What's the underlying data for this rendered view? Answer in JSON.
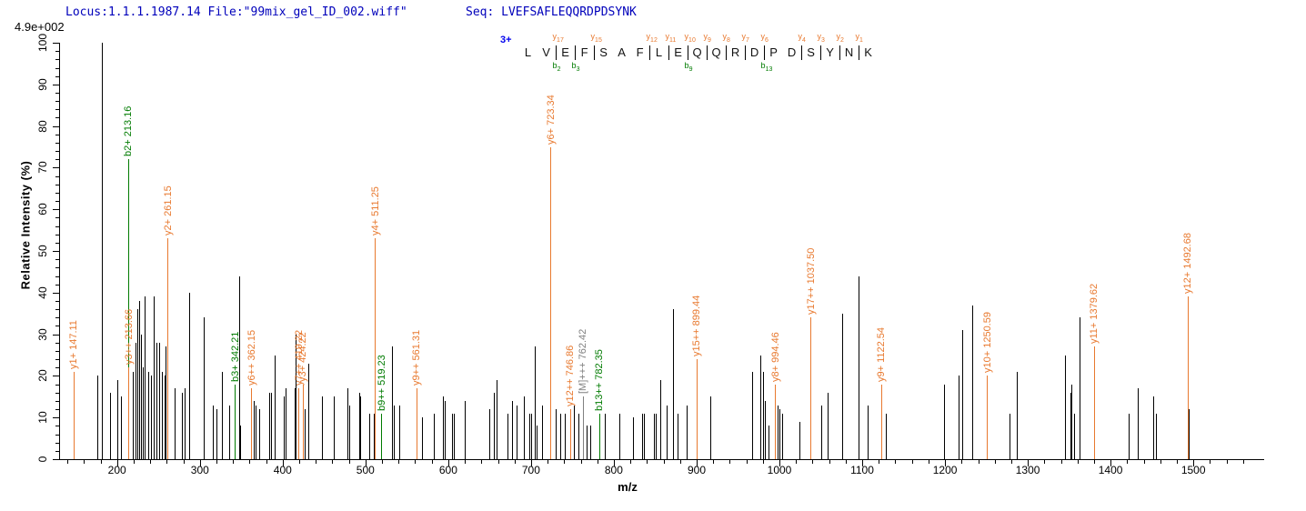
{
  "header": {
    "locus_file": "Locus:1.1.1.1987.14 File:\"99mix_gel_ID_002.wiff\"",
    "seq_label": "Seq: ",
    "seq_value": "LVEFSAFLEQQRDPDSYNK",
    "scale_label": "4.9e+002"
  },
  "sequence_panel": {
    "charge": "3+",
    "residues": "LVEFSAFLEQQRDPDSYNK",
    "markers": [
      {
        "gap": 3,
        "y": "y17",
        "b": "b2"
      },
      {
        "gap": 4,
        "y": "",
        "b": "b3"
      },
      {
        "gap": 5,
        "y": "y15",
        "b": ""
      },
      {
        "gap": 8,
        "y": "y12",
        "b": ""
      },
      {
        "gap": 9,
        "y": "y11",
        "b": ""
      },
      {
        "gap": 10,
        "y": "y10",
        "b": "b9"
      },
      {
        "gap": 11,
        "y": "y9",
        "b": ""
      },
      {
        "gap": 12,
        "y": "y8",
        "b": ""
      },
      {
        "gap": 13,
        "y": "y7",
        "b": ""
      },
      {
        "gap": 14,
        "y": "y6",
        "b": "b13"
      },
      {
        "gap": 16,
        "y": "y4",
        "b": ""
      },
      {
        "gap": 17,
        "y": "y3",
        "b": ""
      },
      {
        "gap": 18,
        "y": "y2",
        "b": ""
      },
      {
        "gap": 19,
        "y": "y1",
        "b": ""
      }
    ]
  },
  "colors": {
    "y_ion": "#e8792f",
    "b_ion": "#007b00",
    "precursor": "#808080",
    "peak": "#000000",
    "header_text": "#0000bb",
    "charge_text": "#0000ee"
  },
  "chart_data": {
    "type": "bar",
    "subtype": "ms2-stick-spectrum",
    "title": "",
    "xlabel": "m/z",
    "ylabel": "Relative Intensity (%)",
    "xlim": [
      130,
      1580
    ],
    "ylim": [
      0,
      100
    ],
    "x_major_ticks": [
      200,
      300,
      400,
      500,
      600,
      700,
      800,
      900,
      1000,
      1100,
      1200,
      1300,
      1400,
      1500
    ],
    "x_minor_step": 20,
    "y_major_step": 10,
    "y_minor_step": 2,
    "grid": false,
    "legend": false,
    "annotated_peaks": [
      {
        "label": "y1+ 147.11",
        "ion": "y",
        "mz": 147.11,
        "intensity": 21
      },
      {
        "label": "b2+ 213.16",
        "ion": "b",
        "mz": 213.16,
        "intensity": 72
      },
      {
        "label": "y3++ 213.66",
        "ion": "y",
        "mz": 213.66,
        "intensity": 22
      },
      {
        "label": "y2+ 261.15",
        "ion": "y",
        "mz": 261.15,
        "intensity": 53
      },
      {
        "label": "b3+ 342.21",
        "ion": "b",
        "mz": 342.21,
        "intensity": 18
      },
      {
        "label": "y6++ 362.15",
        "ion": "y",
        "mz": 362.15,
        "intensity": 17
      },
      {
        "label": "y7++ 419.22",
        "ion": "y",
        "mz": 419.22,
        "intensity": 17
      },
      {
        "label": "y3+ 424.22",
        "ion": "y",
        "mz": 424.22,
        "intensity": 18
      },
      {
        "label": "y4+ 511.25",
        "ion": "y",
        "mz": 511.25,
        "intensity": 53
      },
      {
        "label": "b9++ 519.23",
        "ion": "b",
        "mz": 519.23,
        "intensity": 11
      },
      {
        "label": "y9++ 561.31",
        "ion": "y",
        "mz": 561.31,
        "intensity": 17
      },
      {
        "label": "y6+ 723.34",
        "ion": "y",
        "mz": 723.34,
        "intensity": 75
      },
      {
        "label": "y12++ 746.86",
        "ion": "y",
        "mz": 746.86,
        "intensity": 12
      },
      {
        "label": "[M]+++ 762.42",
        "ion": "M",
        "mz": 762.42,
        "intensity": 15
      },
      {
        "label": "b13++ 782.35",
        "ion": "b",
        "mz": 782.35,
        "intensity": 11
      },
      {
        "label": "y15++ 899.44",
        "ion": "y",
        "mz": 899.44,
        "intensity": 24
      },
      {
        "label": "y8+ 994.46",
        "ion": "y",
        "mz": 994.46,
        "intensity": 18
      },
      {
        "label": "y17++ 1037.50",
        "ion": "y",
        "mz": 1037.5,
        "intensity": 34
      },
      {
        "label": "y9+ 1122.54",
        "ion": "y",
        "mz": 1122.54,
        "intensity": 18
      },
      {
        "label": "y10+ 1250.59",
        "ion": "y",
        "mz": 1250.59,
        "intensity": 20
      },
      {
        "label": "y11+ 1379.62",
        "ion": "y",
        "mz": 1379.62,
        "intensity": 27
      },
      {
        "label": "y12+ 1492.68",
        "ion": "y",
        "mz": 1492.68,
        "intensity": 39
      }
    ],
    "unannotated_peaks": [
      [
        176,
        20
      ],
      [
        182,
        100
      ],
      [
        192,
        16
      ],
      [
        200,
        19
      ],
      [
        205,
        15
      ],
      [
        219,
        21
      ],
      [
        222,
        28
      ],
      [
        224,
        36
      ],
      [
        227,
        38
      ],
      [
        229,
        30
      ],
      [
        231,
        22
      ],
      [
        233,
        39
      ],
      [
        238,
        21
      ],
      [
        241,
        20
      ],
      [
        244,
        39
      ],
      [
        247,
        28
      ],
      [
        251,
        28
      ],
      [
        254,
        21
      ],
      [
        257,
        20
      ],
      [
        259,
        27
      ],
      [
        269,
        17
      ],
      [
        278,
        16
      ],
      [
        282,
        17
      ],
      [
        287,
        40
      ],
      [
        305,
        34
      ],
      [
        316,
        13
      ],
      [
        320,
        12
      ],
      [
        327,
        21
      ],
      [
        335,
        13
      ],
      [
        347,
        44
      ],
      [
        349,
        8
      ],
      [
        365,
        14
      ],
      [
        367,
        13
      ],
      [
        372,
        12
      ],
      [
        384,
        16
      ],
      [
        386,
        16
      ],
      [
        390,
        25
      ],
      [
        401,
        15
      ],
      [
        404,
        17
      ],
      [
        414,
        17
      ],
      [
        416,
        30
      ],
      [
        427,
        12
      ],
      [
        431,
        23
      ],
      [
        447,
        15
      ],
      [
        462,
        15
      ],
      [
        478,
        17
      ],
      [
        480,
        13
      ],
      [
        492,
        16
      ],
      [
        494,
        15
      ],
      [
        504,
        11
      ],
      [
        510,
        11
      ],
      [
        532,
        27
      ],
      [
        534,
        13
      ],
      [
        541,
        13
      ],
      [
        568,
        10
      ],
      [
        583,
        11
      ],
      [
        594,
        15
      ],
      [
        596,
        14
      ],
      [
        605,
        11
      ],
      [
        607,
        11
      ],
      [
        620,
        14
      ],
      [
        650,
        12
      ],
      [
        655,
        16
      ],
      [
        658,
        19
      ],
      [
        672,
        11
      ],
      [
        677,
        14
      ],
      [
        683,
        13
      ],
      [
        691,
        15
      ],
      [
        698,
        11
      ],
      [
        700,
        11
      ],
      [
        705,
        27
      ],
      [
        707,
        8
      ],
      [
        713,
        13
      ],
      [
        730,
        12
      ],
      [
        735,
        11
      ],
      [
        741,
        11
      ],
      [
        752,
        13
      ],
      [
        757,
        11
      ],
      [
        767,
        8
      ],
      [
        771,
        8
      ],
      [
        789,
        11
      ],
      [
        807,
        11
      ],
      [
        823,
        10
      ],
      [
        834,
        11
      ],
      [
        836,
        11
      ],
      [
        848,
        11
      ],
      [
        851,
        11
      ],
      [
        856,
        19
      ],
      [
        864,
        13
      ],
      [
        871,
        36
      ],
      [
        877,
        11
      ],
      [
        888,
        13
      ],
      [
        917,
        15
      ],
      [
        967,
        21
      ],
      [
        977,
        25
      ],
      [
        980,
        21
      ],
      [
        982,
        14
      ],
      [
        987,
        8
      ],
      [
        998,
        13
      ],
      [
        1000,
        12
      ],
      [
        1003,
        11
      ],
      [
        1024,
        9
      ],
      [
        1051,
        13
      ],
      [
        1058,
        16
      ],
      [
        1076,
        35
      ],
      [
        1095,
        44
      ],
      [
        1106,
        13
      ],
      [
        1129,
        11
      ],
      [
        1199,
        18
      ],
      [
        1216,
        20
      ],
      [
        1221,
        31
      ],
      [
        1233,
        37
      ],
      [
        1278,
        11
      ],
      [
        1287,
        21
      ],
      [
        1345,
        25
      ],
      [
        1351,
        16
      ],
      [
        1353,
        18
      ],
      [
        1356,
        11
      ],
      [
        1362,
        34
      ],
      [
        1422,
        11
      ],
      [
        1433,
        17
      ],
      [
        1451,
        15
      ],
      [
        1455,
        11
      ],
      [
        1494,
        12
      ]
    ]
  }
}
